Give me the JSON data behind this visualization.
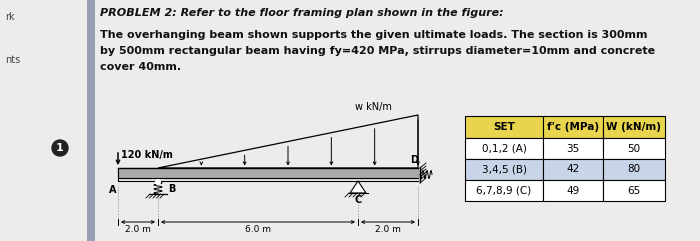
{
  "title_line1": "PROBLEM 2: Refer to the floor framing plan shown in the figure:",
  "title_line2": "The overhanging beam shown supports the given ultimate loads. The section is 300mm",
  "title_line3": "by 500mm rectangular beam having fy=420 MPa, stirrups diameter=10mm and concrete",
  "title_line4": "cover 40mm.",
  "bg_color": "#edecea",
  "text_color": "#111111",
  "table_header_bg": "#e8d44d",
  "table_row_alt_bg": "#c8d4e8",
  "table_row_white_bg": "#ffffff",
  "table_headers": [
    "SET",
    "f'c (MPa)",
    "W (kN/m)"
  ],
  "table_rows": [
    [
      "0,1,2 (A)",
      "35",
      "50"
    ],
    [
      "3,4,5 (B)",
      "42",
      "80"
    ],
    [
      "6,7,8,9 (C)",
      "49",
      "65"
    ]
  ],
  "beam_load": "120 kN/m",
  "w_label": "w kN/m",
  "dim_AB": "2.0 m",
  "dim_BC": "6.0 m",
  "dim_CD": "2.0 m",
  "label_A": "A",
  "label_B": "B",
  "label_C": "C",
  "label_D": "D",
  "side_label_rk": "rk",
  "side_label_nts": "nts",
  "circle_label": "1",
  "left_bar_color": "#9aa0b4",
  "beam_color": "#aaaaaa",
  "beam_dark": "#555555"
}
